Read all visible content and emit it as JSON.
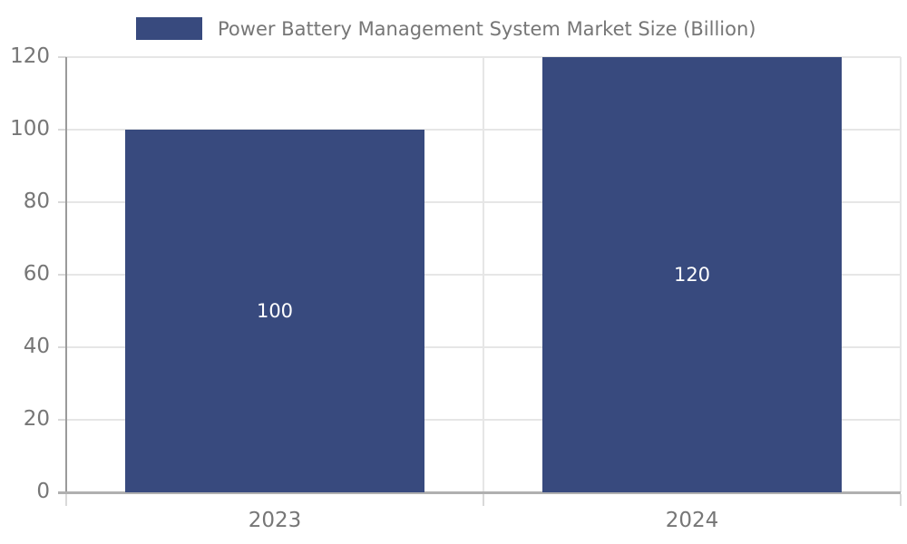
{
  "legend": {
    "label": "Power Battery Management System Market Size (Billion)"
  },
  "chart_data": {
    "type": "bar",
    "title": "Power Battery Management System Market Size (Billion)",
    "series_name": "Power Battery Management System Market Size (Billion)",
    "categories": [
      "2023",
      "2024"
    ],
    "values": [
      100,
      120
    ],
    "bar_labels": [
      "100",
      "120"
    ],
    "xlabel": "",
    "ylabel": "",
    "ylim": [
      0,
      120
    ],
    "yticks": [
      0,
      20,
      40,
      60,
      80,
      100,
      120
    ],
    "grid": true,
    "legend_position": "top",
    "colors": {
      "bar": "#384A7E",
      "axis_text": "#767676",
      "bar_label_text": "#ffffff",
      "gridline": "#e6e6e6",
      "y_axis_line": "#9a9a9a",
      "x_axis_line": "#b0b0b0",
      "tick": "#d9d9d9",
      "background": "#ffffff"
    }
  }
}
